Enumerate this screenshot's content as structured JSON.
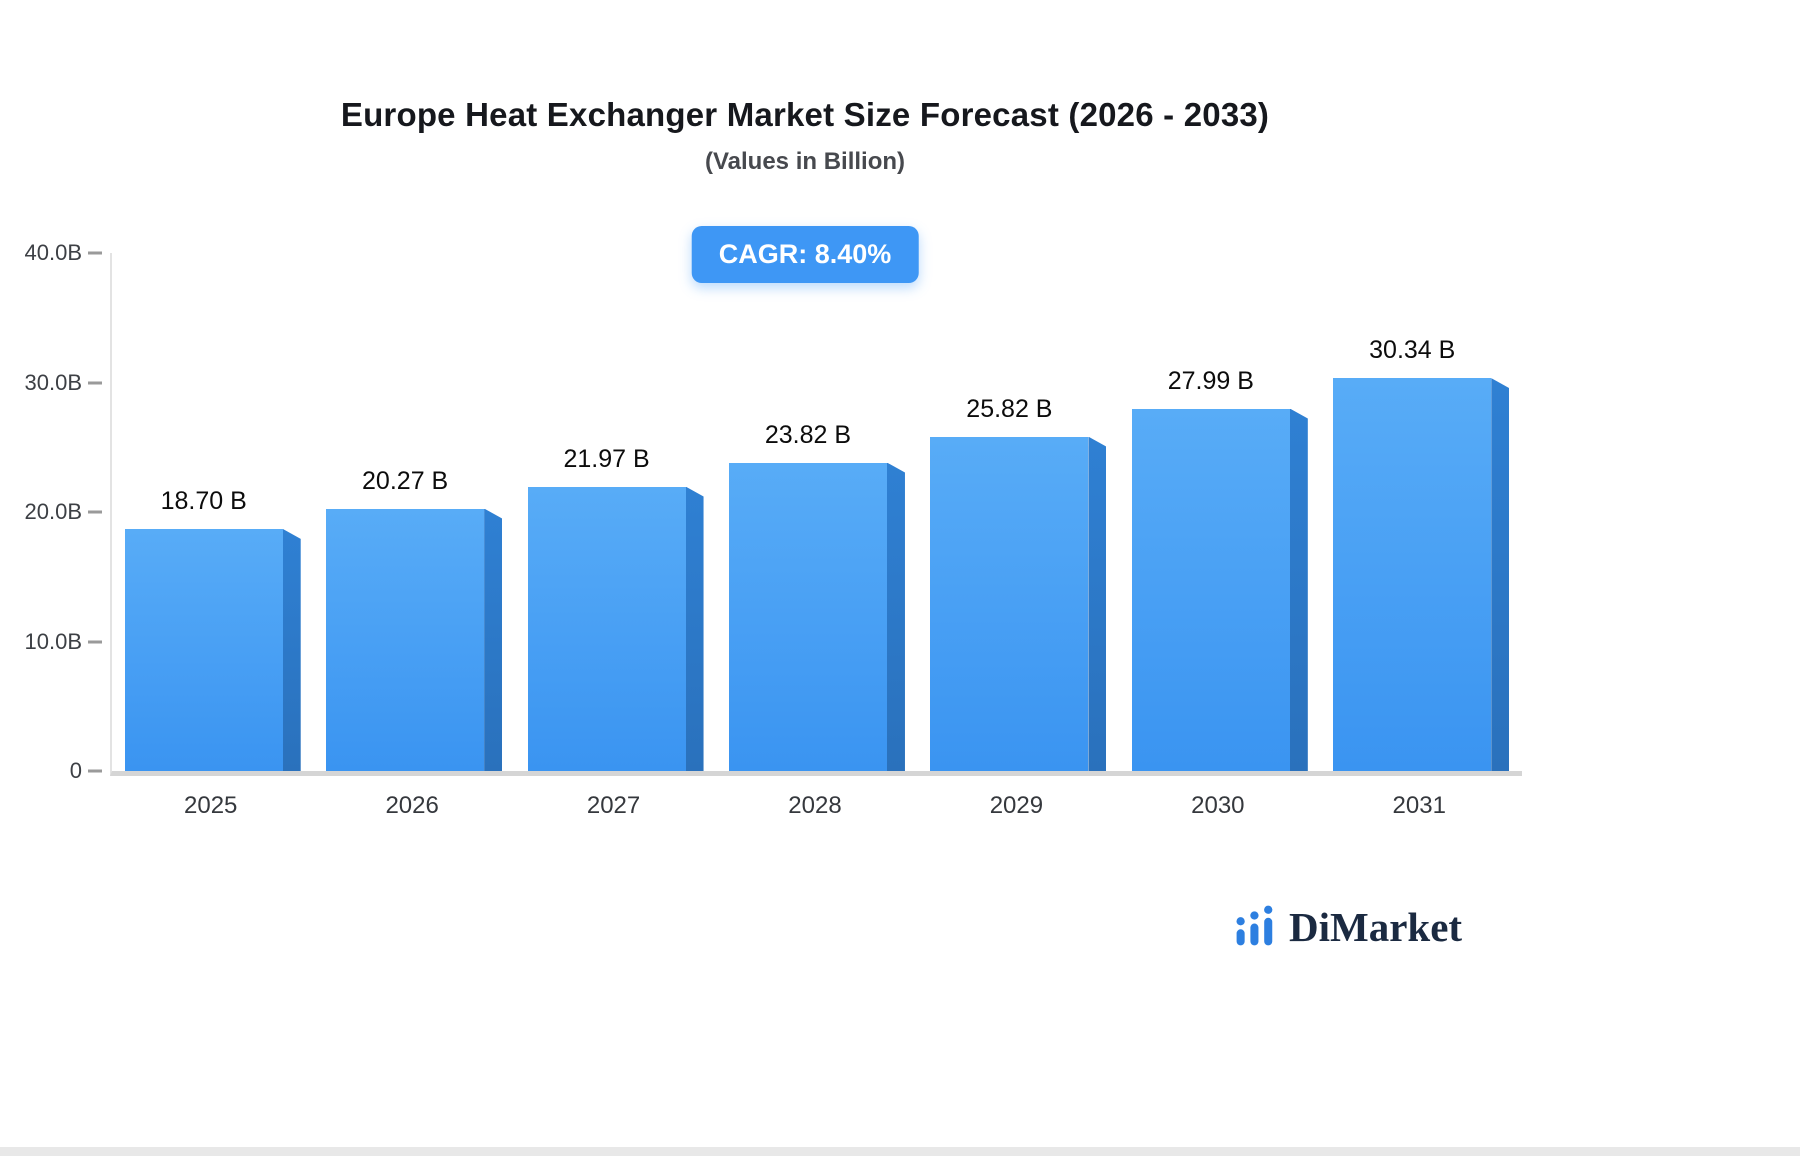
{
  "header": {
    "title": "Europe Heat Exchanger Market Size Forecast (2026 - 2033)",
    "subtitle": "(Values in Billion)"
  },
  "badge": {
    "label": "CAGR: 8.40%",
    "bg_color": "#3e97f5",
    "text_color": "#ffffff"
  },
  "chart_data": {
    "type": "bar",
    "title": "Europe Heat Exchanger Market Size Forecast (2026 - 2033)",
    "subtitle": "(Values in Billion)",
    "categories": [
      "2025",
      "2026",
      "2027",
      "2028",
      "2029",
      "2030",
      "2031"
    ],
    "values": [
      18.7,
      20.27,
      21.97,
      23.82,
      25.82,
      27.99,
      30.34
    ],
    "value_labels": [
      "18.70 B",
      "20.27 B",
      "21.97 B",
      "23.82 B",
      "25.82 B",
      "27.99 B",
      "30.34 B"
    ],
    "ylim": [
      0,
      40
    ],
    "y_ticks": [
      {
        "label": "0",
        "value": 0
      },
      {
        "label": "10.0B",
        "value": 10
      },
      {
        "label": "20.0B",
        "value": 20
      },
      {
        "label": "30.0B",
        "value": 30
      },
      {
        "label": "40.0B",
        "value": 40
      }
    ],
    "grid": false,
    "legend": "none",
    "annotations": [
      "CAGR: 8.40%"
    ],
    "bar_color_top": "#58acf7",
    "bar_color_bottom": "#3a94f1",
    "bar_side_color_top": "#2f80d3",
    "bar_side_color_bottom": "#2a71bc"
  },
  "logo": {
    "text": "DiMarket",
    "icon": "bar-chart-dots-icon",
    "icon_color": "#2d7fe0",
    "text_color": "#1b2a41"
  }
}
